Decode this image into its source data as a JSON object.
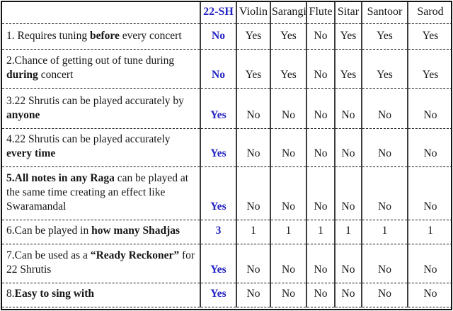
{
  "colors": {
    "accent_blue": "#2323c3",
    "grid_dark": "#141414"
  },
  "table": {
    "columns": [
      {
        "label": "",
        "highlight": false
      },
      {
        "label": "22-SH",
        "highlight": true
      },
      {
        "label": "Violin",
        "highlight": false
      },
      {
        "label": "Sarangi",
        "highlight": false
      },
      {
        "label": "Flute",
        "highlight": false
      },
      {
        "label": "Sitar",
        "highlight": false
      },
      {
        "label": "Santoor",
        "highlight": false
      },
      {
        "label": "Sarod",
        "highlight": false
      }
    ],
    "rows": [
      {
        "criteria_segments": [
          {
            "text": "1. Requires tuning ",
            "bold": false
          },
          {
            "text": "before",
            "bold": true
          },
          {
            "text": " every concert",
            "bold": false
          }
        ],
        "values": [
          "No",
          "Yes",
          "Yes",
          "No",
          "Yes",
          "Yes",
          "Yes"
        ]
      },
      {
        "criteria_segments": [
          {
            "text": "2.Chance of getting out of tune during ",
            "bold": false
          },
          {
            "text": "during",
            "bold": true
          },
          {
            "text": " concert",
            "bold": false
          }
        ],
        "values": [
          "No",
          "Yes",
          "Yes",
          "No",
          "Yes",
          "Yes",
          "Yes"
        ]
      },
      {
        "criteria_segments": [
          {
            "text": "3.22 Shrutis can be played accurately by ",
            "bold": false
          },
          {
            "text": "anyone",
            "bold": true
          }
        ],
        "values": [
          "Yes",
          "No",
          "No",
          "No",
          "No",
          "No",
          "No"
        ]
      },
      {
        "criteria_segments": [
          {
            "text": "4.22 Shrutis can be played accurately ",
            "bold": false
          },
          {
            "text": "every time",
            "bold": true
          }
        ],
        "values": [
          "Yes",
          "No",
          "No",
          "No",
          "No",
          "No",
          "No"
        ]
      },
      {
        "criteria_segments": [
          {
            "text": "5.All notes in any Raga",
            "bold": true
          },
          {
            "text": " can be played at the same time creating an effect like Swaramandal",
            "bold": false
          }
        ],
        "values": [
          "Yes",
          "No",
          "No",
          "No",
          "No",
          "No",
          "No"
        ]
      },
      {
        "criteria_segments": [
          {
            "text": "6.Can be played in ",
            "bold": false
          },
          {
            "text": "how many Shadjas",
            "bold": true
          }
        ],
        "values": [
          "3",
          "1",
          "1",
          "1",
          "1",
          "1",
          "1"
        ]
      },
      {
        "criteria_segments": [
          {
            "text": "7.Can be used as a ",
            "bold": false
          },
          {
            "text": "“Ready Reckoner”",
            "bold": true
          },
          {
            "text": " for 22 Shrutis",
            "bold": false
          }
        ],
        "values": [
          "Yes",
          "No",
          "No",
          "No",
          "No",
          "No",
          "No"
        ]
      },
      {
        "criteria_segments": [
          {
            "text": "8.",
            "bold": false
          },
          {
            "text": "Easy to sing with",
            "bold": true
          }
        ],
        "values": [
          "Yes",
          "No",
          "No",
          "No",
          "No",
          "No",
          "No"
        ]
      }
    ]
  }
}
